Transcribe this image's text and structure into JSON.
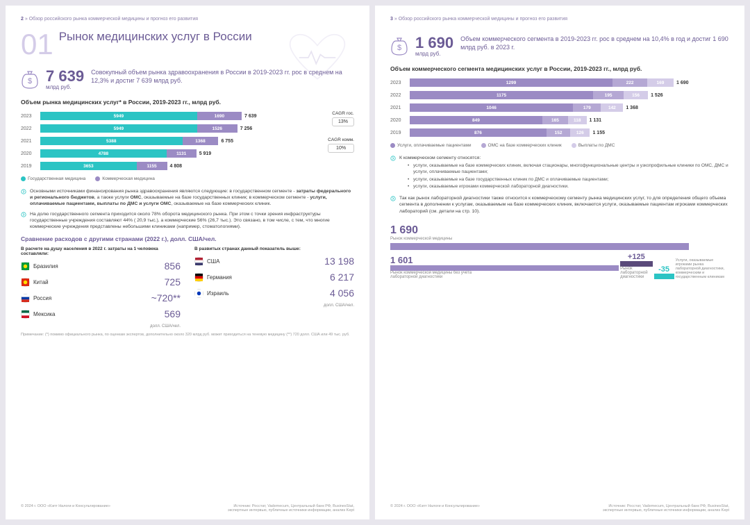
{
  "colors": {
    "teal": "#2bc4c4",
    "purple": "#9b8bc4",
    "purple_mid": "#b5a8d4",
    "purple_light": "#d4cce8",
    "accent": "#6b5b95",
    "cyan": "#2bc4c4",
    "red": "#d9534f"
  },
  "left": {
    "page_hdr_num": "2",
    "page_hdr_txt": "Обзор российского рынка коммерческой медицины и прогноз его развития",
    "section_num": "01",
    "section_title": "Рынок медицинских услуг в России",
    "metric_value": "7 639",
    "metric_unit": "млрд руб.",
    "metric_text": "Совокупный объем рынка здравоохранения в России в 2019-2023 гг. рос в среднем на 12,3% и достиг 7 639 млрд руб.",
    "chart1_title": "Объем рынка медицинских услуг* в России, 2019-2023 гг., млрд руб.",
    "chart1": {
      "max": 7639,
      "scale": 290,
      "rows": [
        {
          "year": "2023",
          "segs": [
            {
              "v": 5949,
              "c": "#2bc4c4"
            },
            {
              "v": 1690,
              "c": "#9b8bc4"
            }
          ],
          "total": "7 639"
        },
        {
          "year": "2022",
          "segs": [
            {
              "v": 5949,
              "c": "#2bc4c4"
            },
            {
              "v": 1526,
              "c": "#9b8bc4"
            }
          ],
          "total": "7 256"
        },
        {
          "year": "2021",
          "segs": [
            {
              "v": 5388,
              "c": "#2bc4c4"
            },
            {
              "v": 1368,
              "c": "#9b8bc4"
            }
          ],
          "total": "6 755"
        },
        {
          "year": "2020",
          "segs": [
            {
              "v": 4788,
              "c": "#2bc4c4"
            },
            {
              "v": 1131,
              "c": "#9b8bc4"
            }
          ],
          "total": "5 919"
        },
        {
          "year": "2019",
          "segs": [
            {
              "v": 3653,
              "c": "#2bc4c4"
            },
            {
              "v": 1155,
              "c": "#9b8bc4"
            }
          ],
          "total": "4 808"
        }
      ],
      "legend": [
        {
          "label": "Государственная медицина",
          "c": "#2bc4c4"
        },
        {
          "label": "Коммерческая медицина",
          "c": "#9b8bc4"
        }
      ],
      "cagr1_lbl": "CAGR гос.",
      "cagr1_v": "13%",
      "cagr2_lbl": "CAGR комм.",
      "cagr2_v": "10%"
    },
    "bullets": [
      "Основными источниками финансирования рынка здравоохранения являются следующие: в государственном сегменте - <b>затраты федерального и регионального бюджетов</b>, а также услуги <b>ОМС</b>, оказываемые на базе государственных клиник; в коммерческом сегменте - <b>услуги, оплачиваемые пациентами, выплаты по ДМС и услуги ОМС</b>, оказываемые на базе коммерческих клиник.",
      "На долю государственного сегмента приходится около 78% оборота медицинского рынка. При этом с точки зрения инфраструктуры государственные учреждения составляют 44% ( 20,9 тыс.), а коммерческие 56% (26,7 тыс.). Это связано, в том числе, с тем, что многие коммерческие учреждения представлены небольшими клиниками (например, стоматологиями)."
    ],
    "compare_hdr": "Сравнение расходов с другими странами (2022 г.), долл. США/чел.",
    "col1_hdr": "В расчете на душу населения в 2022 г. затраты на 1 человека составляли:",
    "col2_hdr": "В развитых странах данный показатель выше:",
    "countries1": [
      {
        "name": "Бразилия",
        "v": "856",
        "flag": "br"
      },
      {
        "name": "Китай",
        "v": "725",
        "flag": "cn"
      },
      {
        "name": "Россия",
        "v": "~720**",
        "flag": "ru"
      },
      {
        "name": "Мексика",
        "v": "569",
        "flag": "mx"
      }
    ],
    "countries2": [
      {
        "name": "США",
        "v": "13 198",
        "flag": "us"
      },
      {
        "name": "Германия",
        "v": "6 217",
        "flag": "de"
      },
      {
        "name": "Израиль",
        "v": "4 056",
        "flag": "il"
      }
    ],
    "col_unit": "долл. США/чел.",
    "note": "Примечание: (*) помимо официального рынка, по оценкам экспертов, дополнительно около 320 млрд руб. может приходиться на теневую медицину\n(**) 720 долл. США или 49 тыс. руб.",
    "copyright": "© 2024 г. ООО «Кэпт Налоги и Консультирование»",
    "source": "Источник: Росстат, Vademecum, Центральный банк РФ, BusinesStat, экспертные интервью, публичные источники информации, анализ Kept"
  },
  "right": {
    "page_hdr_num": "3",
    "page_hdr_txt": "Обзор российского рынка коммерческой медицины и прогноз его развития",
    "metric_value": "1 690",
    "metric_unit": "млрд руб.",
    "metric_text": "Объем коммерческого сегмента в 2019-2023 гг. рос в среднем на 10,4% в год и достиг 1 690 млрд руб. в 2023 г.",
    "chart_title": "Объем коммерческого сегмента медицинских услуг в России, 2019-2023 гг., млрд руб.",
    "chart": {
      "max": 1690,
      "scale": 380,
      "rows": [
        {
          "year": "2023",
          "segs": [
            {
              "v": 1299,
              "c": "#9b8bc4"
            },
            {
              "v": 222,
              "c": "#b5a8d4"
            },
            {
              "v": 169,
              "c": "#d4cce8"
            }
          ],
          "total": "1 690"
        },
        {
          "year": "2022",
          "segs": [
            {
              "v": 1175,
              "c": "#9b8bc4"
            },
            {
              "v": 195,
              "c": "#b5a8d4"
            },
            {
              "v": 156,
              "c": "#d4cce8"
            }
          ],
          "total": "1 526"
        },
        {
          "year": "2021",
          "segs": [
            {
              "v": 1046,
              "c": "#9b8bc4"
            },
            {
              "v": 179,
              "c": "#b5a8d4"
            },
            {
              "v": 142,
              "c": "#d4cce8"
            }
          ],
          "total": "1 368"
        },
        {
          "year": "2020",
          "segs": [
            {
              "v": 849,
              "c": "#9b8bc4"
            },
            {
              "v": 165,
              "c": "#b5a8d4"
            },
            {
              "v": 118,
              "c": "#d4cce8"
            }
          ],
          "total": "1 131"
        },
        {
          "year": "2019",
          "segs": [
            {
              "v": 876,
              "c": "#9b8bc4"
            },
            {
              "v": 152,
              "c": "#b5a8d4"
            },
            {
              "v": 126,
              "c": "#d4cce8"
            }
          ],
          "total": "1 155"
        }
      ],
      "legend": [
        {
          "label": "Услуги, оплачиваемые пациентами",
          "c": "#9b8bc4"
        },
        {
          "label": "ОМС на базе коммерческих клиник",
          "c": "#b5a8d4"
        },
        {
          "label": "Выплаты по ДМС",
          "c": "#d4cce8"
        }
      ]
    },
    "block1_hdr": "К коммерческом сегменту относятся:",
    "block1_items": [
      "услуги, оказываемые на базе коммерческих клиник, включая стационары, многофункциональные центры и узкопрофильные клиники по ОМС, ДМС и услуги, оплачиваемые пациентами;",
      "услуги, оказываемые на базе государственных клиник по ДМС и оплачиваемые пациентами;",
      "услуги, оказываемые игроками коммерческой лабораторной диагностики."
    ],
    "block2": "Так как рынок лабораторной диагностики также относится к коммерческому сегменту рынка медицинских услуг, то для определения общего объема сегмента в дополнении к услугам, оказываемым на базе коммерческих клиник, включаются услуги, оказываемые пациентам игроками коммерческих лабораторий (см. детали на стр. 10).",
    "wf": {
      "total": "1 690",
      "total_lbl": "Рынок коммерческой медицины",
      "left_v": "1 601",
      "left_lbl": "Рынок коммерческой медицины без учета лабораторной диагностики",
      "mid_v": "+125",
      "mid_lbl": "Рынок лабораторной диагностики",
      "right_v": "-35",
      "right_lbl": "Услуги, оказываемые игроками рынка лабораторной диагностики, коммерческим и государственным клиникам"
    },
    "copyright": "© 2024 г. ООО «Кэпт Налоги и Консультирование»",
    "source": "Источник: Росстат, Vademecum, Центральный банк РФ, BusinesStat, экспертные интервью, публичные источники информации, анализ Kept"
  }
}
